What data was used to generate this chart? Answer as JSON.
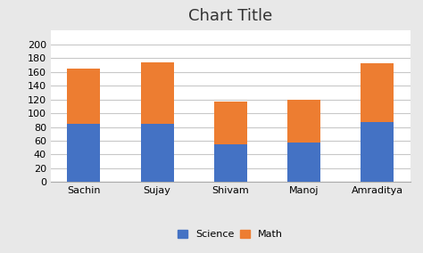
{
  "categories": [
    "Sachin",
    "Sujay",
    "Shivam",
    "Manoj",
    "Amraditya"
  ],
  "science": [
    85,
    85,
    55,
    57,
    87
  ],
  "math": [
    80,
    88,
    62,
    62,
    85
  ],
  "science_color": "#4472C4",
  "math_color": "#ED7D31",
  "title": "Chart Title",
  "title_fontsize": 13,
  "ylim": [
    0,
    220
  ],
  "yticks": [
    0,
    20,
    40,
    60,
    80,
    100,
    120,
    140,
    160,
    180,
    200
  ],
  "legend_labels": [
    "Science",
    "Math"
  ],
  "background_color": "#f2f2f2",
  "plot_bg_color": "#ffffff",
  "bar_width": 0.45,
  "outer_bg": "#e8e8e8"
}
